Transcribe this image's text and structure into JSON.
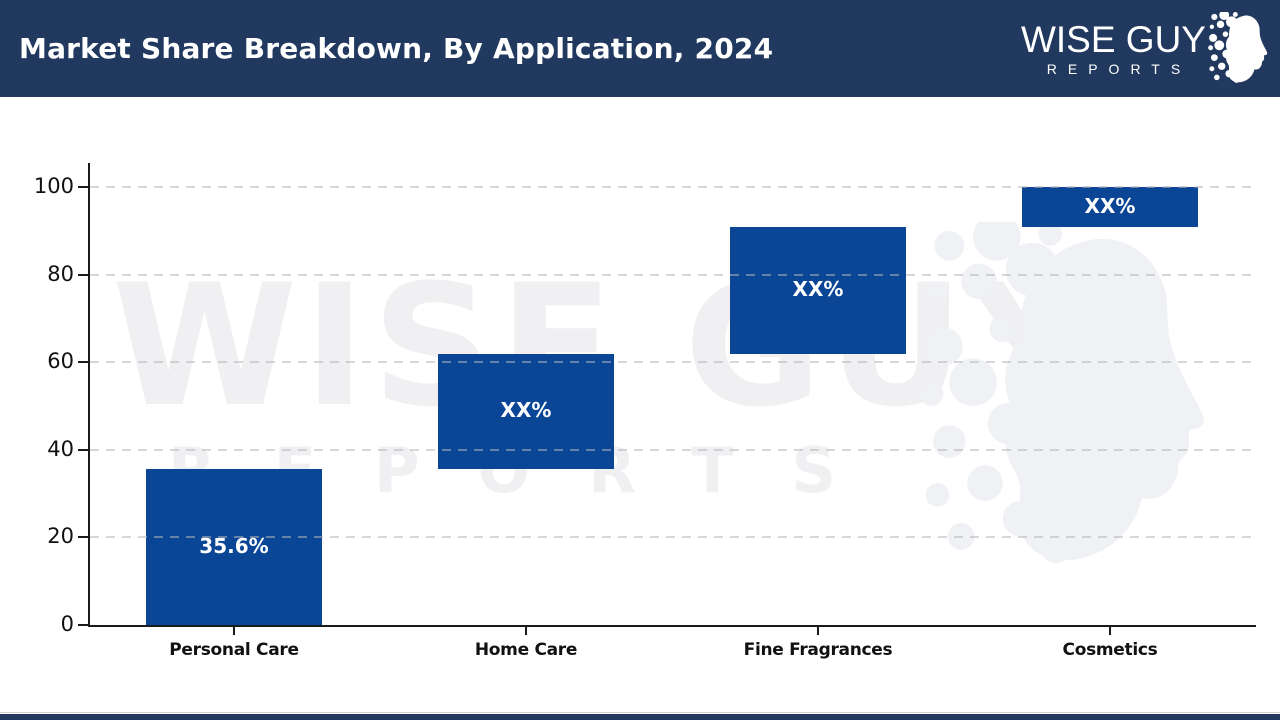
{
  "header": {
    "title": "Market Share Breakdown, By Application, 2024"
  },
  "logo": {
    "line1": "WISE GUY",
    "line2": "REPORTS"
  },
  "watermark": {
    "line1": "WISE GUY",
    "line2": "REPORTS"
  },
  "colors": {
    "header_navy": "#21395f",
    "bar_blue": "#0a4596",
    "bar_label_white": "#ffffff",
    "grid_gray": "#d9d9d9",
    "axis_black": "#1a1a1a",
    "watermark_gray": "#f0f0f2"
  },
  "chart_data": {
    "type": "bar",
    "subtype": "waterfall",
    "title": "Market Share Breakdown, By Application, 2024",
    "xlabel": "",
    "ylabel": "",
    "categories": [
      "Personal Care",
      "Home Care",
      "Fine Fragrances",
      "Cosmetics"
    ],
    "bars": [
      {
        "category": "Personal Care",
        "start": 0,
        "end": 35.6,
        "label": "35.6%"
      },
      {
        "category": "Home Care",
        "start": 35.6,
        "end": 61.9,
        "label": "XX%"
      },
      {
        "category": "Fine Fragrances",
        "start": 61.9,
        "end": 90.9,
        "label": "XX%"
      },
      {
        "category": "Cosmetics",
        "start": 90.9,
        "end": 100,
        "label": "XX%"
      }
    ],
    "yticks": [
      0,
      20,
      40,
      60,
      80,
      100
    ],
    "ylim": [
      0,
      100
    ],
    "grid": true,
    "grid_style": "dashed",
    "legend": "none",
    "bar_color": "#0a4596",
    "label_color": "#ffffff"
  }
}
